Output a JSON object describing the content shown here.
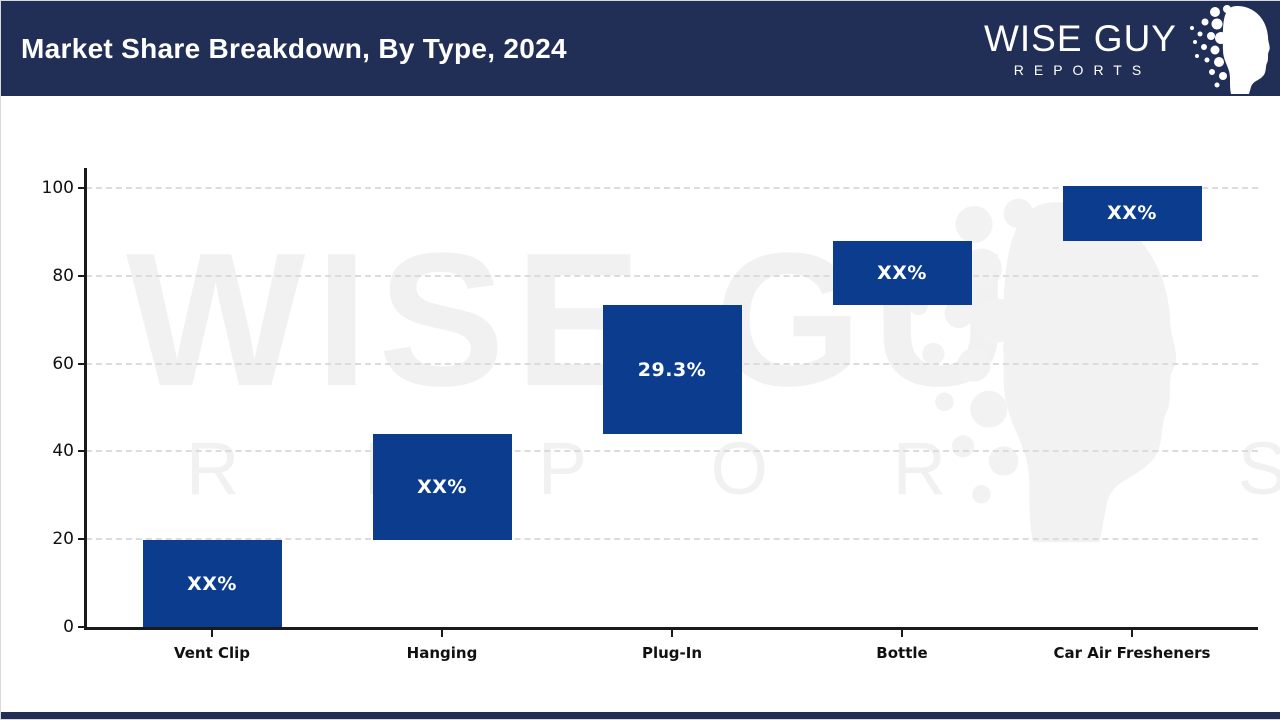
{
  "header": {
    "title": "Market Share Breakdown, By Type, 2024",
    "logo": {
      "brand_top": "WISE GUY",
      "brand_bottom": "REPORTS"
    }
  },
  "watermark": {
    "line1": "WISE GUY",
    "line2": "R E P O R T S"
  },
  "colors": {
    "header_bg": "#212e56",
    "footer_bg": "#212e56",
    "bar_fill": "#0c3c8e",
    "bar_label_text": "#ffffff",
    "grid_line": "#dcdcdc",
    "axis_line": "#1a1a1a",
    "watermark_text": "#f1f1f1"
  },
  "chart_data": {
    "type": "bar",
    "subtype": "waterfall",
    "title": "Market Share Breakdown, By Type, 2024",
    "categories": [
      "Vent Clip",
      "Hanging",
      "Plug-In",
      "Bottle",
      "Car Air Fresheners"
    ],
    "segments": [
      {
        "category": "Vent Clip",
        "start": 0.0,
        "end": 19.8,
        "value_label": "XX%"
      },
      {
        "category": "Hanging",
        "start": 19.8,
        "end": 44.0,
        "value_label": "XX%"
      },
      {
        "category": "Plug-In",
        "start": 44.0,
        "end": 73.3,
        "value_label": "29.3%"
      },
      {
        "category": "Bottle",
        "start": 73.3,
        "end": 88.0,
        "value_label": "XX%"
      },
      {
        "category": "Car Air Fresheners",
        "start": 88.0,
        "end": 100.5,
        "value_label": "XX%"
      }
    ],
    "yticks": [
      0,
      20,
      40,
      60,
      80,
      100
    ],
    "ylim": [
      0,
      105
    ],
    "xlabel": "",
    "ylabel": "",
    "grid": "horizontal dashed",
    "legend": "none"
  }
}
